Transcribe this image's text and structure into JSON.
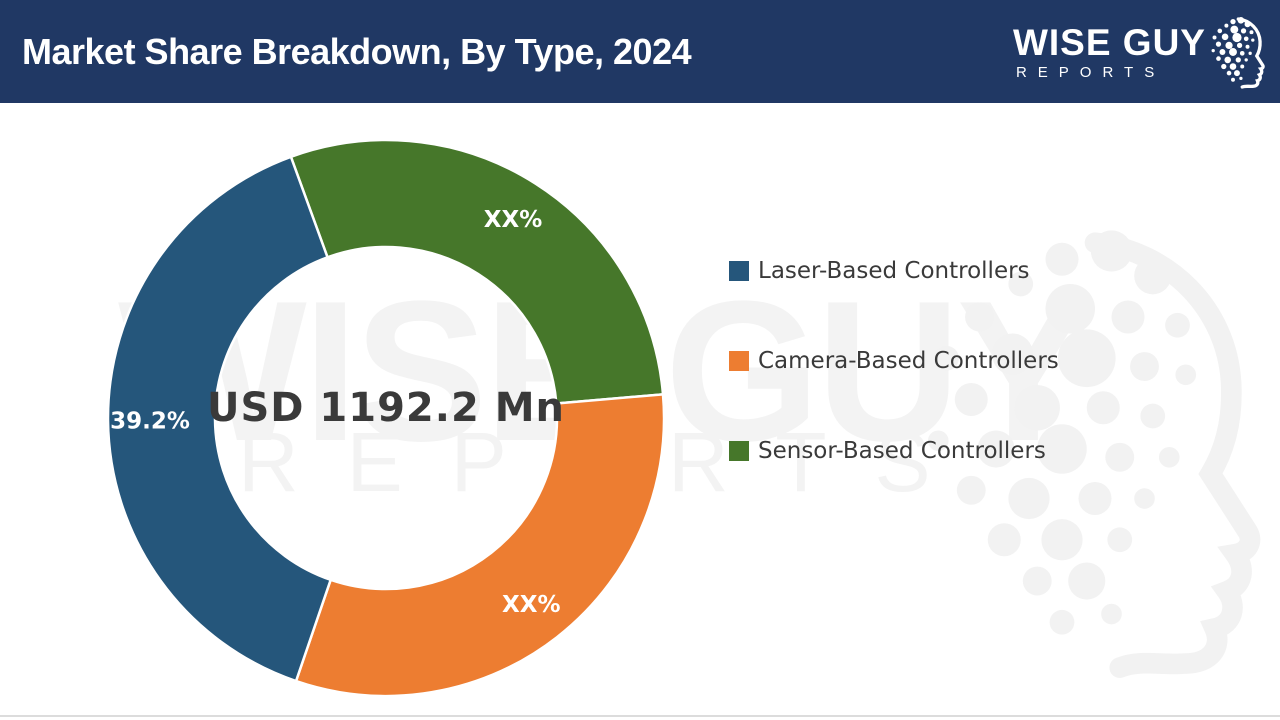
{
  "header": {
    "title": "Market Share Breakdown, By Type, 2024",
    "bg_color": "#203864",
    "logo": {
      "line1": "WISE GUY",
      "line2": "REPORTS"
    }
  },
  "watermark": {
    "line1": "WISE GUY",
    "line2": "REPORTS"
  },
  "chart_data": {
    "type": "pie",
    "subtype": "donut",
    "title": "Market Share Breakdown, By Type, 2024",
    "center_label": "USD 1192.2 Mn",
    "start_angle_deg": 110,
    "direction": "clockwise",
    "slices": [
      {
        "label": "Sensor-Based Controllers",
        "value_pct": 29.2,
        "display_label": "XX%",
        "color": "#46772A"
      },
      {
        "label": "Camera-Based Controllers",
        "value_pct": 31.6,
        "display_label": "XX%",
        "color": "#ED7D31"
      },
      {
        "label": "Laser-Based Controllers",
        "value_pct": 39.2,
        "display_label": "39.2%",
        "color": "#25567B"
      }
    ],
    "legend": [
      {
        "label": "Laser-Based Controllers",
        "color": "#25567B"
      },
      {
        "label": "Camera-Based Controllers",
        "color": "#ED7D31"
      },
      {
        "label": "Sensor-Based Controllers",
        "color": "#46772A"
      }
    ],
    "legend_position": "right",
    "gap_color": "#ffffff"
  }
}
